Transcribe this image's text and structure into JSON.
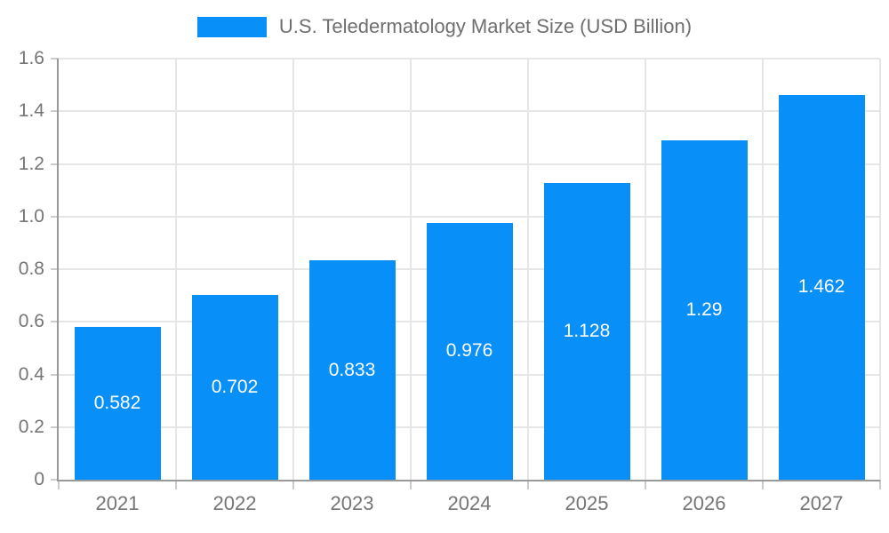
{
  "chart_data": {
    "type": "bar",
    "title": "U.S. Teledermatology Market Size (USD Billion)",
    "categories": [
      "2021",
      "2022",
      "2023",
      "2024",
      "2025",
      "2026",
      "2027"
    ],
    "values": [
      0.582,
      0.702,
      0.833,
      0.976,
      1.128,
      1.29,
      1.462
    ],
    "data_labels": [
      "0.582",
      "0.702",
      "0.833",
      "0.976",
      "1.128",
      "1.29",
      "1.462"
    ],
    "xlabel": "",
    "ylabel": "",
    "ylim": [
      0,
      1.6
    ],
    "y_tick_step": 0.2,
    "y_tick_labels": [
      "0",
      "0.2",
      "0.4",
      "0.6",
      "0.8",
      "1.0",
      "1.2",
      "1.4",
      "1.6"
    ],
    "grid": true,
    "vertical_band_gridlines": true,
    "legend_position": "top-center",
    "colors": {
      "bar": "#0990f8",
      "bar_label_text": "#ffffff",
      "axis_text": "#757575",
      "title_text": "#6f6f6f",
      "gridline": "#e6e6e6",
      "axis_line": "#999999",
      "tick": "#cccccc",
      "background": "#ffffff"
    }
  }
}
